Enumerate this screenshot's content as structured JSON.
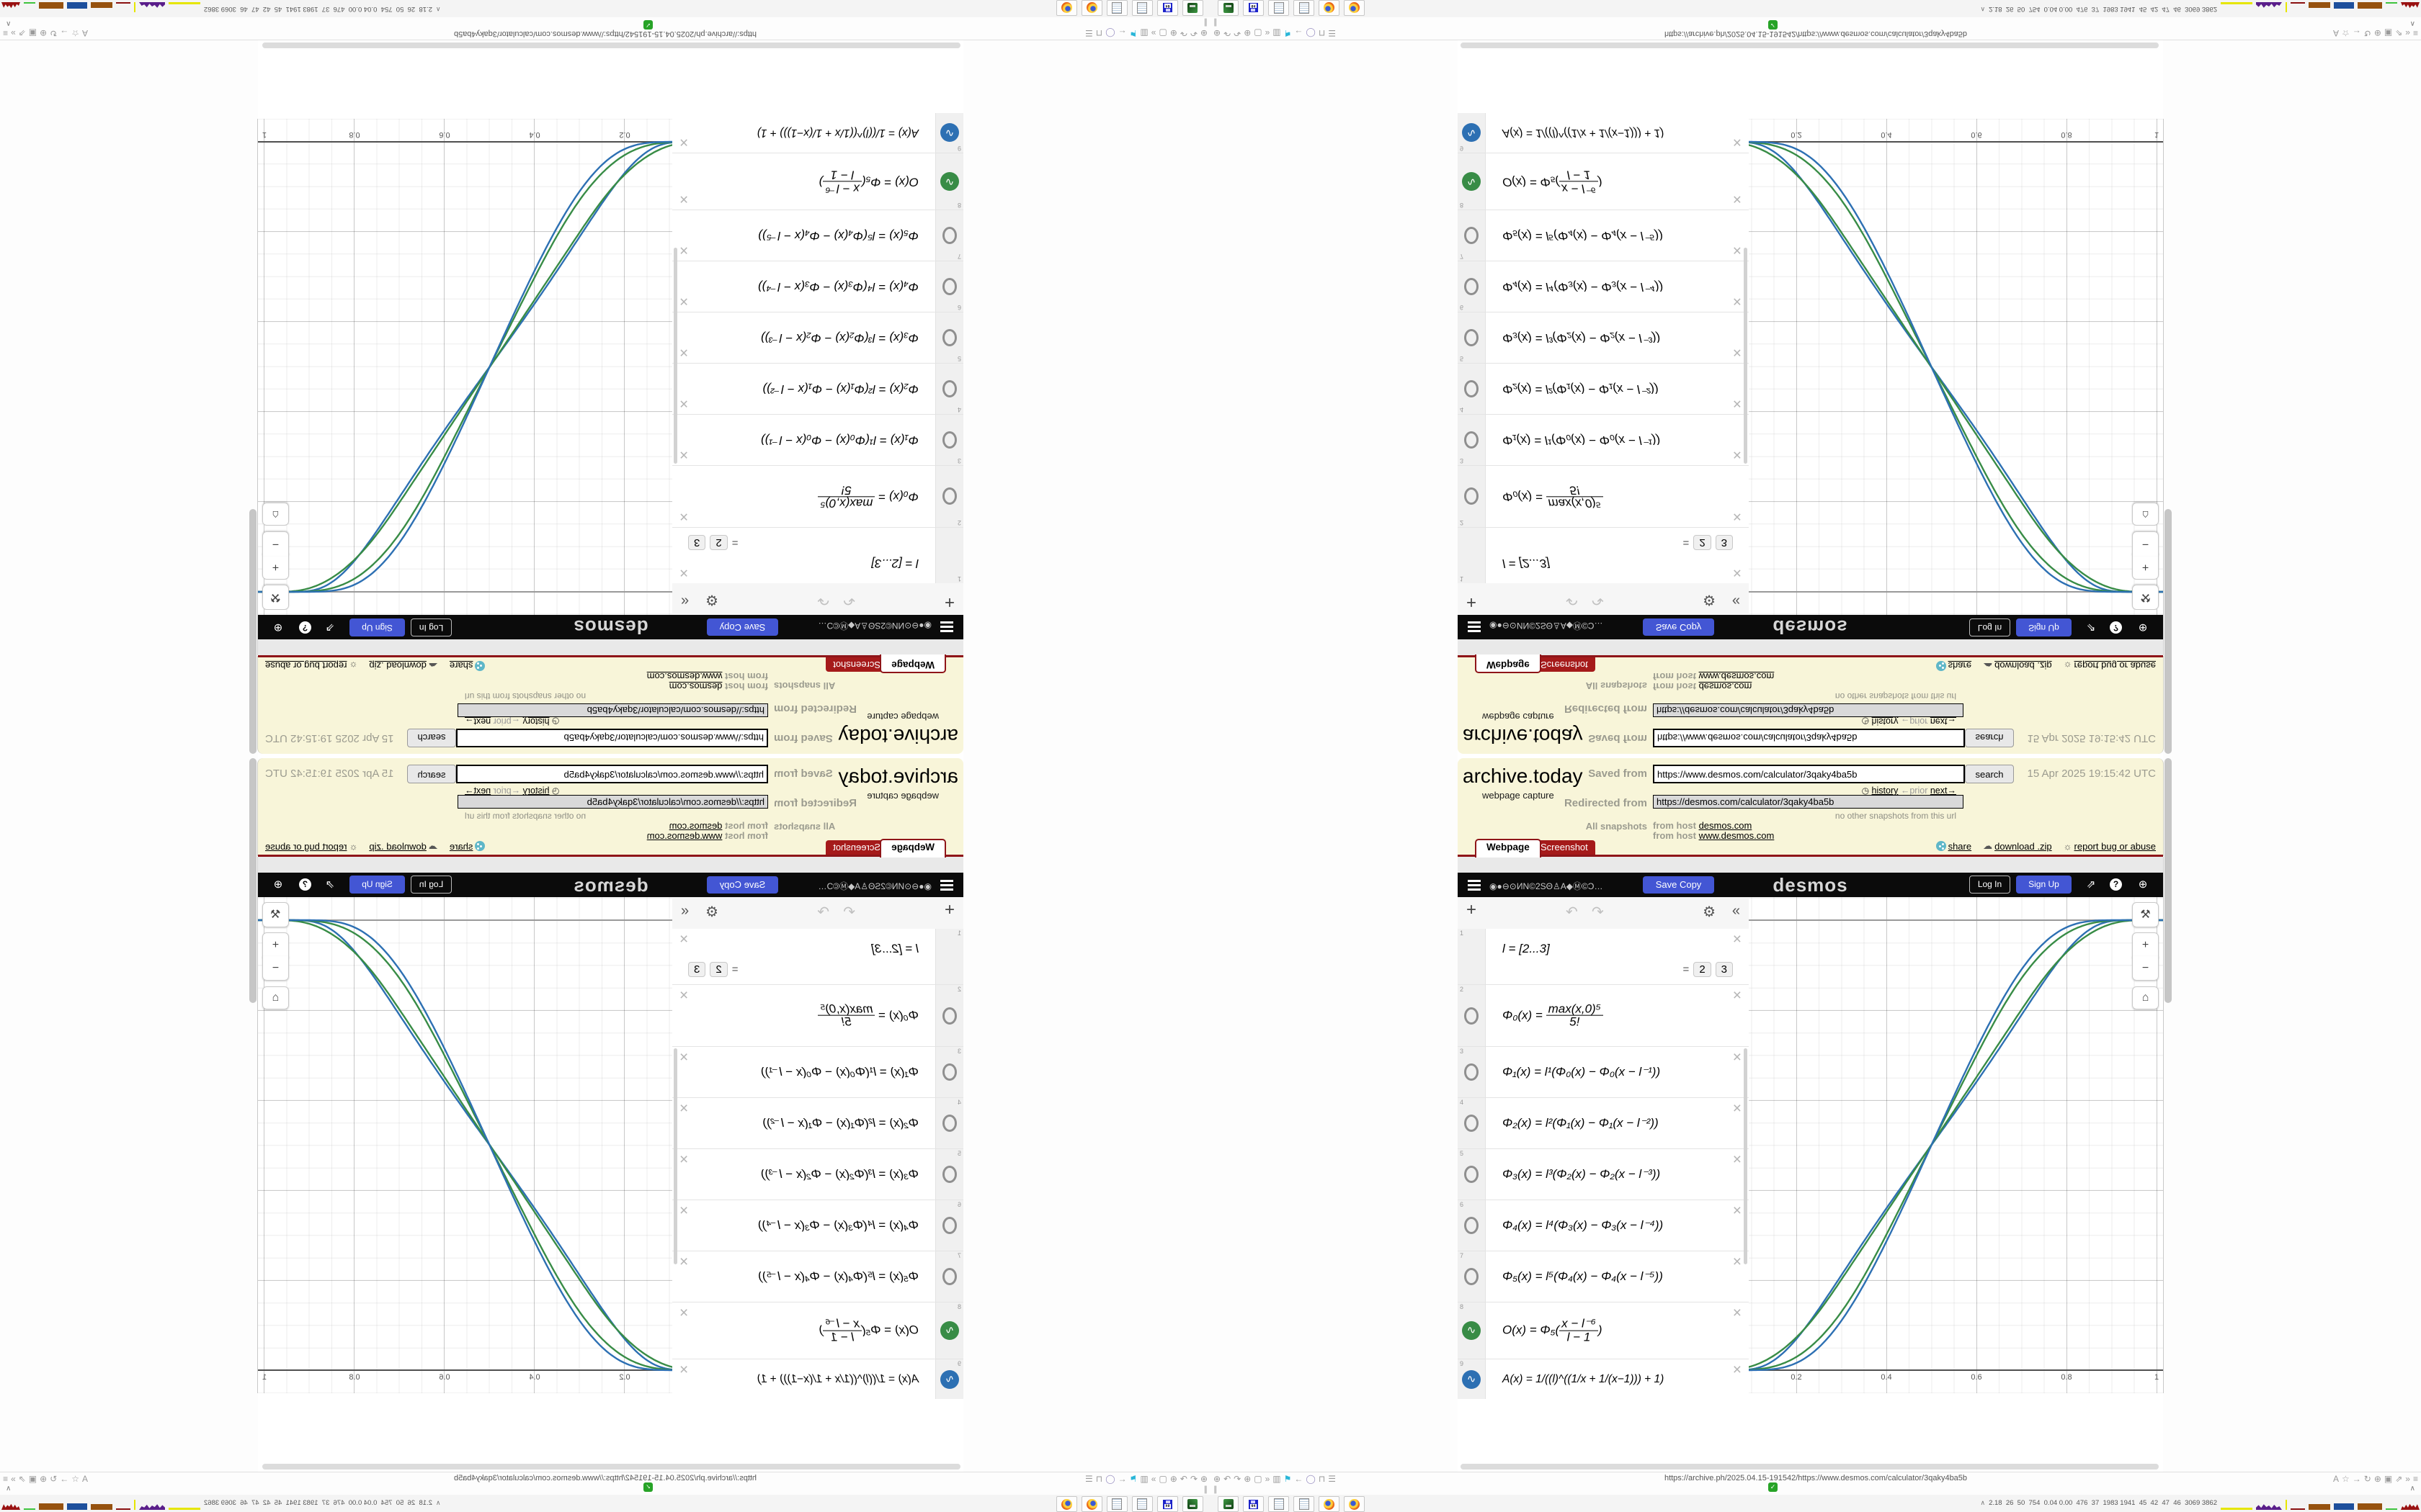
{
  "archive": {
    "logo": "archive.today",
    "tagline": "webpage capture",
    "saved_from_label": "Saved from",
    "saved_url": "https://www.desmos.com/calculator/3qaky4ba5b",
    "search_button": "search",
    "snapshot_datetime": "15 Apr 2025 19:15:42 UTC",
    "history_icon": "◷",
    "history_link": "history",
    "prior_link": "←prior",
    "next_link": "next→",
    "redirected_from_label": "Redirected from",
    "redirected_url": "https://desmos.com/calculator/3qaky4ba5b",
    "no_snapshots_note": "no other snapshots from this url",
    "all_snapshots_label": "All snapshots",
    "host_row_label": "from host",
    "host_primary": "desmos.com",
    "host_row_label_2": "from host",
    "host_secondary": "www.desmos.com",
    "tabs": {
      "webpage": "Webpage",
      "screenshot": "Screenshot"
    },
    "share_link": "share",
    "download_icon": "☁",
    "download_link": "download .zip",
    "report_icon": "☼",
    "report_link": "report bug or abuse",
    "colors": {
      "header_bg": "#f8f5d9",
      "tab_red": "#a51a1a",
      "rule_red": "#8f1519"
    }
  },
  "desmos": {
    "graph_title": "◉●⊖⊙ИN©2SΘ♙A◆Ⓜ©Ɔ…",
    "save_copy_button": "Save Copy",
    "wordmark": "desmos",
    "log_in_button": "Log In",
    "sign_up_button": "Sign Up",
    "help_glyph": "?",
    "export_glyph": "⇗",
    "globe_glyph": "⊕",
    "accent_blue": "#4356d4",
    "toolbar": {
      "add": "+",
      "undo": "↶",
      "redo": "↷",
      "settings": "⚙",
      "collapse": "«"
    },
    "graph_buttons": {
      "wrench": "⚒",
      "zoom_in": "+",
      "zoom_out": "−",
      "home": "⌂"
    },
    "delete_glyph": "×",
    "curve_glyph": "∿",
    "expressions": [
      {
        "row": "1",
        "latex": "l = [2...3]",
        "result_eq": "=",
        "results": [
          "2",
          "3"
        ]
      },
      {
        "row": "2",
        "lhs": "Φ₀(x) = ",
        "frac_num": "max(x,0)⁵",
        "frac_den": "5!"
      },
      {
        "row": "3",
        "latex": "Φ₁(x) = l¹(Φ₀(x) − Φ₀(x − l⁻¹))"
      },
      {
        "row": "4",
        "latex": "Φ₂(x) = l²(Φ₁(x) − Φ₁(x − l⁻²))"
      },
      {
        "row": "5",
        "latex": "Φ₃(x) = l³(Φ₂(x) − Φ₂(x − l⁻³))"
      },
      {
        "row": "6",
        "latex": "Φ₄(x) = l⁴(Φ₃(x) − Φ₃(x − l⁻⁴))"
      },
      {
        "row": "7",
        "latex": "Φ₅(x) = l⁵(Φ₄(x) − Φ₄(x − l⁻⁵))"
      },
      {
        "row": "8",
        "lhs": "O(x) = Φ₅(",
        "frac_num": "x − l⁻⁶",
        "frac_den": "l − 1",
        "rhs": ")"
      },
      {
        "row": "9",
        "latex": "A(x) = 1/((l)^((1/x + 1/(x−1))) + 1)"
      }
    ]
  },
  "chart_data": {
    "type": "line",
    "title": "",
    "xlabel": "",
    "ylabel": "",
    "x_tick_labels": [
      "0.2",
      "0.4",
      "0.6",
      "0.8",
      "1"
    ],
    "x_ticks": [
      0.2,
      0.4,
      0.6,
      0.8,
      1
    ],
    "visible_x_range": [
      0.09,
      1.01
    ],
    "visible_y_range": [
      -0.05,
      1.0
    ],
    "grid": {
      "minor_step": 0.05,
      "major_step": 0.2,
      "shown": true
    },
    "axis_color": "#4f4f4f",
    "legend": "none",
    "series": [
      {
        "name": "A(x) = 1/(l^(1/x+1/(x−1))+1), l=2",
        "fn": "A",
        "l": 2,
        "color": "#2d70b3"
      },
      {
        "name": "O(x) = Φ₅((x−l⁻⁶)/(l−1)), l=2",
        "fn": "O",
        "l": 2,
        "color": "#388c46"
      },
      {
        "name": "O(x) = Φ₅((x−l⁻⁶)/(l−1)), l=3",
        "fn": "O",
        "l": 3,
        "color": "#388c46"
      },
      {
        "name": "A(x) = 1/(l^(1/x+1/(x−1))+1), l=3",
        "fn": "A",
        "l": 3,
        "color": "#2d70b3"
      }
    ],
    "transform": {
      "x0": -59,
      "y0": 657,
      "unit": 625
    }
  },
  "browser": {
    "url": "https://archive.ph/2025.04.15-191542/https://www.desmos.com/calculator/3qaky4ba5b",
    "nav_left": [
      {
        "g": "⊕"
      },
      {
        "g": "↶"
      },
      {
        "g": "↷"
      },
      {
        "g": "⊕"
      },
      {
        "g": "▢"
      },
      {
        "g": "»"
      },
      {
        "g": "▥"
      },
      {
        "g": "⚑"
      },
      {
        "g": "←"
      },
      {
        "g": "◯"
      },
      {
        "g": "⊓"
      },
      {
        "g": "☰"
      }
    ],
    "nav_right": [
      {
        "g": "A"
      },
      {
        "g": "☆"
      },
      {
        "g": "→"
      },
      {
        "g": "↻"
      },
      {
        "g": "⊕"
      },
      {
        "g": "▣"
      },
      {
        "g": "⇗"
      },
      {
        "g": "»"
      },
      {
        "g": "≡"
      }
    ],
    "pause_glyph": "∥",
    "collapse_glyph": "∧",
    "extension_check": "✓",
    "stat_icon": "∧",
    "stats": "2.18  26  50  754  0.04 0.00  476  37  1983 1941  45  42  47  46  3069 3862",
    "floppy_label": "64"
  }
}
